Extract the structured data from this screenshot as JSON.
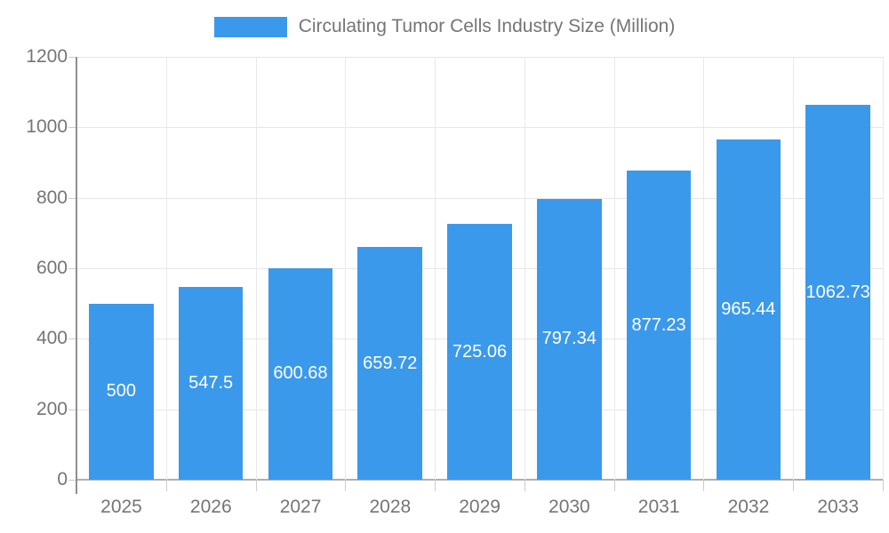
{
  "legend": {
    "series_label": "Circulating Tumor Cells Industry Size (Million)"
  },
  "chart_data": {
    "type": "bar",
    "title": "Circulating Tumor Cells Industry Size (Million)",
    "categories": [
      "2025",
      "2026",
      "2027",
      "2028",
      "2029",
      "2030",
      "2031",
      "2032",
      "2033"
    ],
    "values": [
      500,
      547.5,
      600.68,
      659.72,
      725.06,
      797.34,
      877.23,
      965.44,
      1062.73
    ],
    "value_labels": [
      "500",
      "547.5",
      "600.68",
      "659.72",
      "725.06",
      "797.34",
      "877.23",
      "965.44",
      "1062.73"
    ],
    "xlabel": "",
    "ylabel": "",
    "ylim": [
      0,
      1200
    ],
    "yticks": [
      0,
      200,
      400,
      600,
      800,
      1000,
      1200
    ],
    "grid": true,
    "legend_position": "top",
    "colors": {
      "bar": "#3B99EC",
      "bar_label": "#FFFFFF",
      "axis_text": "#757575",
      "gridline": "#E6E6E6",
      "axis_line": "#8F8F8F",
      "zero_line": "#B0B0B0",
      "tick": "#CCCCCC"
    }
  }
}
